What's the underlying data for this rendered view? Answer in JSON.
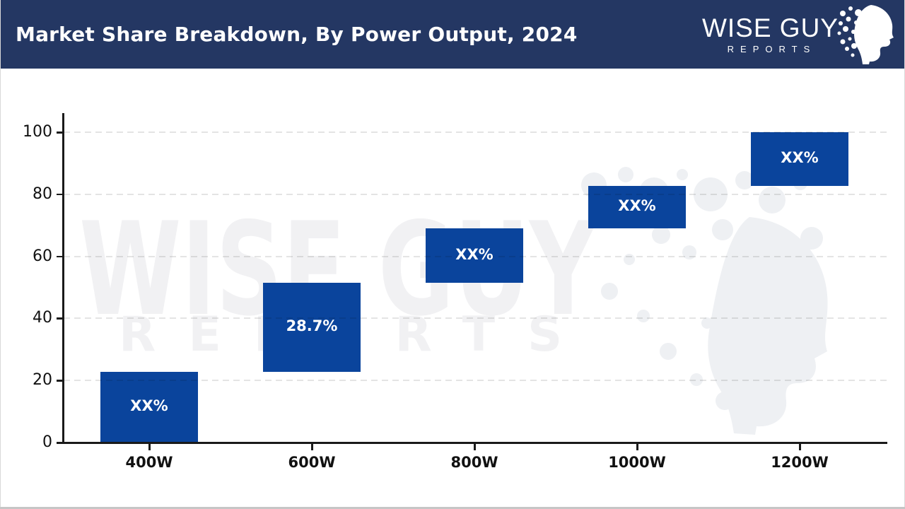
{
  "header": {
    "title": "Market Share Breakdown, By Power Output, 2024",
    "logo": {
      "line1": "WISE GUY",
      "line2": "REPORTS"
    }
  },
  "watermark": {
    "line1": "WISE GUY",
    "line2": "REPORTS"
  },
  "chart_data": {
    "type": "bar",
    "subtype": "floating-cumulative-share",
    "title": "Market Share Breakdown, By Power Output, 2024",
    "xlabel": "",
    "ylabel": "",
    "categories": [
      "400W",
      "600W",
      "800W",
      "1000W",
      "1200W"
    ],
    "segments": [
      {
        "category": "400W",
        "from": 0,
        "to": 22.8,
        "label": "XX%"
      },
      {
        "category": "600W",
        "from": 22.8,
        "to": 51.5,
        "label": "28.7%",
        "value": 28.7
      },
      {
        "category": "800W",
        "from": 51.5,
        "to": 69.0,
        "label": "XX%"
      },
      {
        "category": "1000W",
        "from": 69.0,
        "to": 82.8,
        "label": "XX%"
      },
      {
        "category": "1200W",
        "from": 82.8,
        "to": 100.0,
        "label": "XX%"
      }
    ],
    "yticks": [
      0,
      20,
      40,
      60,
      80,
      100
    ],
    "ylim": [
      0,
      100
    ],
    "grid": "dashed-horizontal",
    "legend": "none"
  },
  "colors": {
    "header_bg": "#243763",
    "bar": "#0a449c",
    "bar_label": "#ffffff",
    "axis": "#1a1a1a",
    "watermark": "#f1f1f3"
  }
}
